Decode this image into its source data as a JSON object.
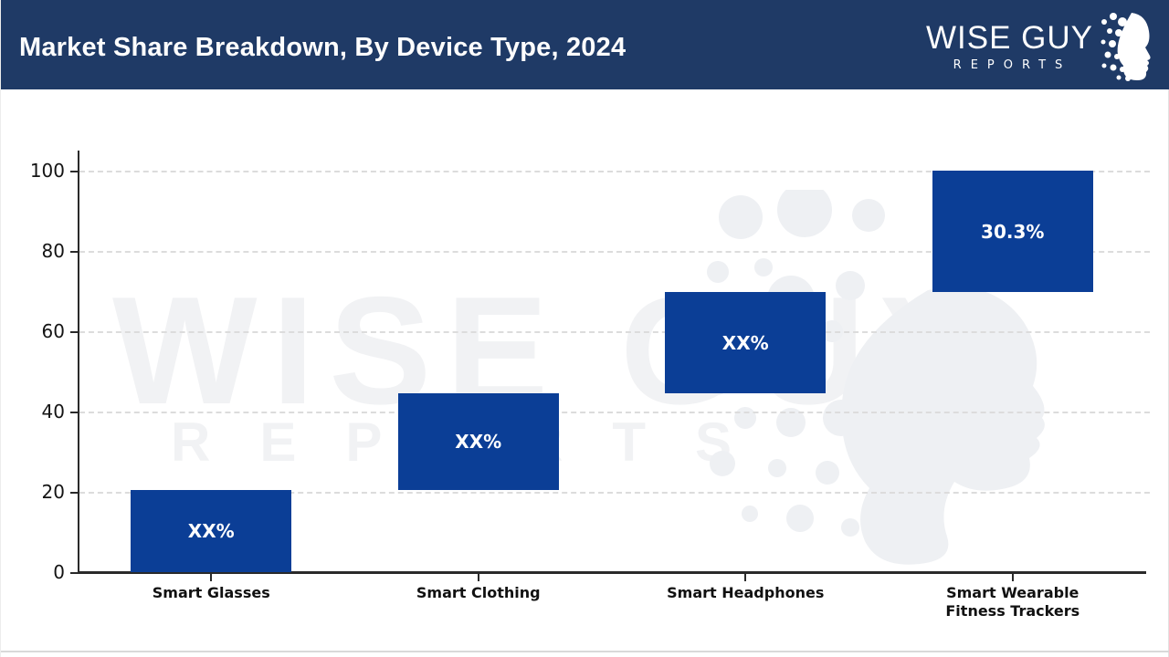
{
  "header": {
    "title": "Market Share Breakdown, By Device Type, 2024",
    "logo": {
      "line1": "WISE GUY",
      "line2": "REPORTS"
    },
    "bg_color": "#1f3a66"
  },
  "chart_data": {
    "type": "bar",
    "subtype": "waterfall",
    "title": "Market Share Breakdown, By Device Type, 2024",
    "categories": [
      "Smart Glasses",
      "Smart Clothing",
      "Smart Headphones",
      "Smart Wearable Fitness Trackers"
    ],
    "segments": [
      {
        "category": "Smart Glasses",
        "start": 0,
        "end": 20.4,
        "label": "XX%"
      },
      {
        "category": "Smart Clothing",
        "start": 20.4,
        "end": 44.5,
        "label": "XX%"
      },
      {
        "category": "Smart Headphones",
        "start": 44.5,
        "end": 69.7,
        "label": "XX%"
      },
      {
        "category": "Smart Wearable Fitness Trackers",
        "start": 69.7,
        "end": 100,
        "label": "30.3%"
      }
    ],
    "yticks": [
      0,
      20,
      40,
      60,
      80,
      100
    ],
    "ylim": [
      0,
      105
    ],
    "xlabel": "",
    "ylabel": "",
    "grid": "horizontal-dashed",
    "legend": "none",
    "bar_color": "#0b3e96",
    "bar_label_color": "#ffffff",
    "axis_color": "#2a2a2a",
    "gridline_color": "#dcdcdc",
    "watermark": {
      "line1": "WISE GUY",
      "line2": "REPORTS"
    }
  }
}
